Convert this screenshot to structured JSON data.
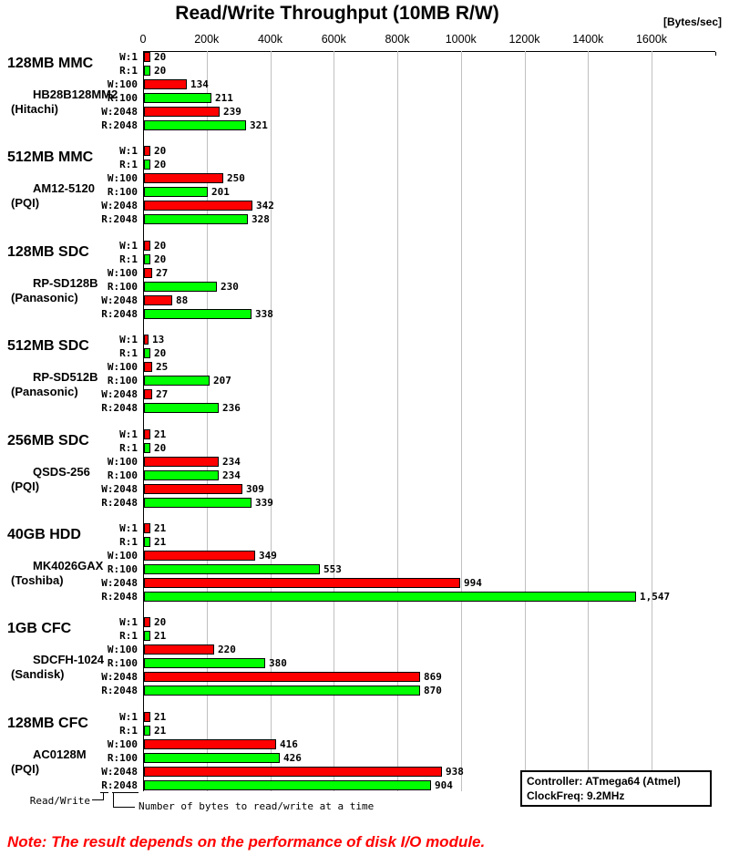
{
  "chart_data": {
    "type": "bar",
    "orientation": "horizontal",
    "title": "Read/Write Throughput (10MB R/W)",
    "axis_unit": "[Bytes/sec]",
    "x_ticks": [
      "0",
      "200k",
      "400k",
      "600k",
      "800k",
      "1000k",
      "1200k",
      "1400k",
      "1600k"
    ],
    "x_tick_values_k": [
      0,
      200,
      400,
      600,
      800,
      1000,
      1200,
      1400,
      1600
    ],
    "x_axis_max_k": 1800,
    "grid": true,
    "legend_position": "bottom-right",
    "bar_row_labels": [
      "W:1",
      "R:1",
      "W:100",
      "R:100",
      "W:2048",
      "R:2048"
    ],
    "series_colors": {
      "write": "#ff0000",
      "read": "#00ff00"
    },
    "grid_color": "#c0c0c0",
    "groups": [
      {
        "device": "128MB MMC",
        "model": "HB28B128MM2",
        "maker": "(Hitachi)",
        "values_k": [
          20,
          20,
          134,
          211,
          239,
          321
        ],
        "value_labels": [
          "20",
          "20",
          "134",
          "211",
          "239",
          "321"
        ]
      },
      {
        "device": "512MB MMC",
        "model": "AM12-5120",
        "maker": "(PQI)",
        "values_k": [
          20,
          20,
          250,
          201,
          342,
          328
        ],
        "value_labels": [
          "20",
          "20",
          "250",
          "201",
          "342",
          "328"
        ]
      },
      {
        "device": "128MB SDC",
        "model": "RP-SD128B",
        "maker": "(Panasonic)",
        "values_k": [
          20,
          20,
          27,
          230,
          88,
          338
        ],
        "value_labels": [
          "20",
          "20",
          "27",
          "230",
          "88",
          "338"
        ]
      },
      {
        "device": "512MB SDC",
        "model": "RP-SD512B",
        "maker": "(Panasonic)",
        "values_k": [
          13,
          20,
          25,
          207,
          27,
          236
        ],
        "value_labels": [
          "13",
          "20",
          "25",
          "207",
          "27",
          "236"
        ]
      },
      {
        "device": "256MB SDC",
        "model": "QSDS-256",
        "maker": "(PQI)",
        "values_k": [
          21,
          20,
          234,
          234,
          309,
          339
        ],
        "value_labels": [
          "21",
          "20",
          "234",
          "234",
          "309",
          "339"
        ]
      },
      {
        "device": "40GB HDD",
        "model": "MK4026GAX",
        "maker": "(Toshiba)",
        "values_k": [
          21,
          21,
          349,
          553,
          994,
          1547
        ],
        "value_labels": [
          "21",
          "21",
          "349",
          "553",
          "994",
          "1,547"
        ]
      },
      {
        "device": "1GB CFC",
        "model": "SDCFH-1024",
        "maker": "(Sandisk)",
        "values_k": [
          20,
          21,
          220,
          380,
          869,
          870
        ],
        "value_labels": [
          "20",
          "21",
          "220",
          "380",
          "869",
          "870"
        ]
      },
      {
        "device": "128MB CFC",
        "model": "AC0128M",
        "maker": "(PQI)",
        "values_k": [
          21,
          21,
          416,
          426,
          938,
          904
        ],
        "value_labels": [
          "21",
          "21",
          "416",
          "426",
          "938",
          "904"
        ]
      }
    ],
    "info_box": {
      "line1": "Controller: ATmega64 (Atmel)",
      "line2": "ClockFreq: 9.2MHz"
    },
    "annotations": {
      "read_write": "Read/Write",
      "bytes_at_a_time": "Number of bytes to read/write at a time"
    },
    "note": "Note: The result depends on the performance of disk I/O module."
  }
}
